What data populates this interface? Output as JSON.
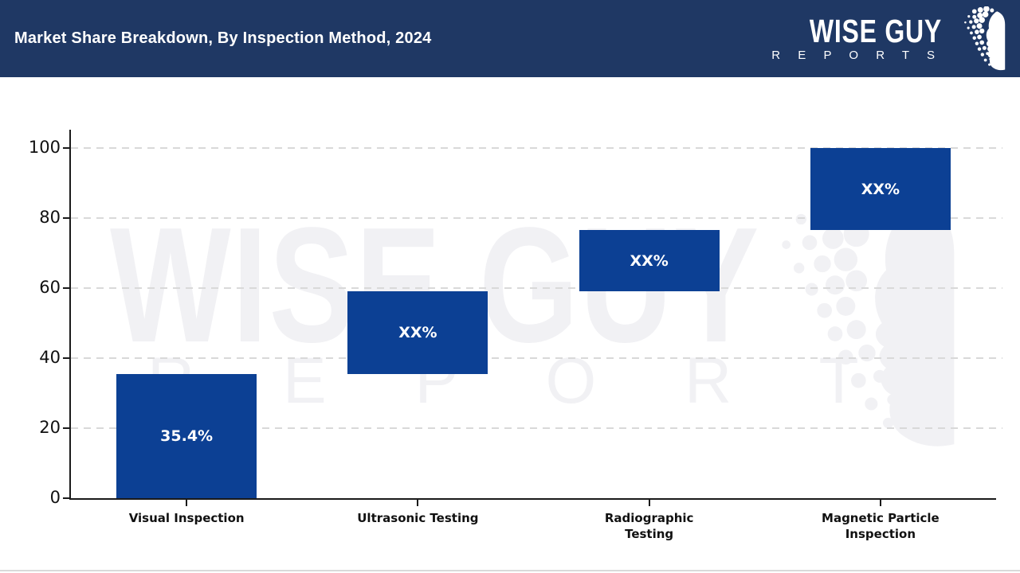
{
  "header": {
    "title": "Market Share Breakdown, By Inspection Method, 2024",
    "logo": {
      "line1": "WISE GUY",
      "line2": "R E P O R T S"
    }
  },
  "watermark": {
    "line1": "WISE GUY",
    "line2": "R E P O R T S"
  },
  "colors": {
    "header_bg": "#1f3864",
    "bar": "#0c4094",
    "grid": "#d9d9d9",
    "axis": "#1a1a1a",
    "bar_label": "#ffffff",
    "watermark": "#f1f1f4"
  },
  "chart_data": {
    "type": "bar",
    "subtype": "waterfall",
    "title": "Market Share Breakdown, By Inspection Method, 2024",
    "categories": [
      "Visual Inspection",
      "Ultrasonic Testing",
      "Radiographic\nTesting",
      "Magnetic Particle\nInspection"
    ],
    "segments": [
      {
        "category": "Visual Inspection",
        "start": 0,
        "end": 35.4,
        "label": "35.4%"
      },
      {
        "category": "Ultrasonic Testing",
        "start": 35.4,
        "end": 59,
        "label": "XX%"
      },
      {
        "category": "Radiographic Testing",
        "start": 59,
        "end": 76.5,
        "label": "XX%"
      },
      {
        "category": "Magnetic Particle Inspection",
        "start": 76.5,
        "end": 100,
        "label": "XX%"
      }
    ],
    "xlabel": "",
    "ylabel": "",
    "ylim": [
      0,
      100
    ],
    "yticks": [
      0,
      20,
      40,
      60,
      80,
      100
    ],
    "grid": "horizontal-dashed",
    "legend": "none",
    "bar_color": "#0c4094",
    "value_label_color": "#ffffff"
  }
}
